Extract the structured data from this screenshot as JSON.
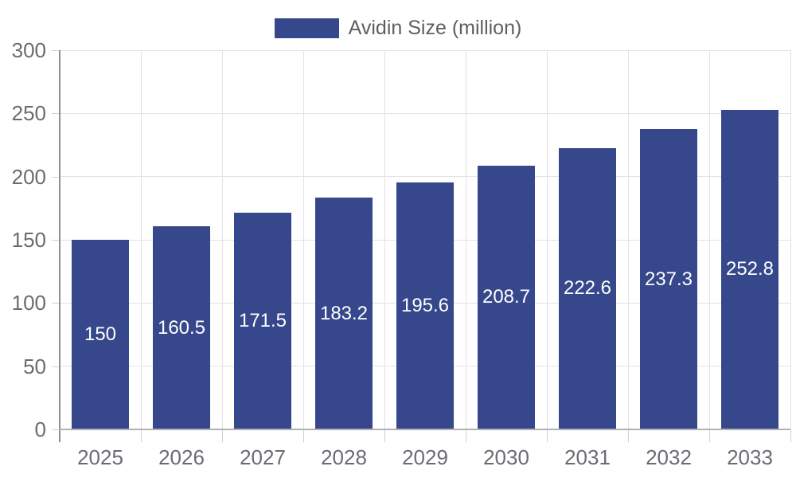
{
  "chart_data": {
    "type": "bar",
    "title": "",
    "categories": [
      "2025",
      "2026",
      "2027",
      "2028",
      "2029",
      "2030",
      "2031",
      "2032",
      "2033"
    ],
    "series": [
      {
        "name": "Avidin Size (million)",
        "values": [
          150,
          160.5,
          171.5,
          183.2,
          195.6,
          208.7,
          222.6,
          237.3,
          252.8
        ]
      }
    ],
    "value_labels": [
      "150",
      "160.5",
      "171.5",
      "183.2",
      "195.6",
      "208.7",
      "222.6",
      "237.3",
      "252.8"
    ],
    "xlabel": "",
    "ylabel": "",
    "ylim": [
      0,
      300
    ],
    "yticks": [
      0,
      50,
      100,
      150,
      200,
      250,
      300
    ],
    "grid": true,
    "legend_position": "top",
    "colors": {
      "bar": "#36478b",
      "bar_label": "#ffffff",
      "axis_label": "#6b6b73",
      "legend_text": "#5e5e64",
      "gridline": "#e2e2e8",
      "axis_line": "#8e8e93",
      "background": "#ffffff"
    }
  }
}
